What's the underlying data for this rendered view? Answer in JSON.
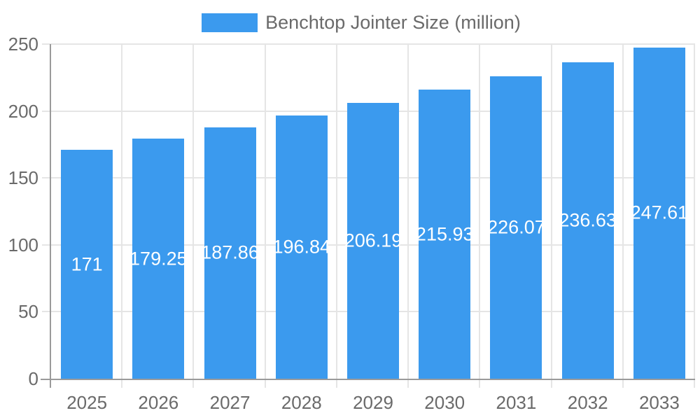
{
  "legend": {
    "label": "Benchtop Jointer Size (million)"
  },
  "chart_data": {
    "type": "bar",
    "title": "Benchtop Jointer Size (million)",
    "series_name": "Benchtop Jointer Size (million)",
    "categories": [
      "2025",
      "2026",
      "2027",
      "2028",
      "2029",
      "2030",
      "2031",
      "2032",
      "2033"
    ],
    "values": [
      171,
      179.25,
      187.86,
      196.84,
      206.19,
      215.93,
      226.07,
      236.63,
      247.61
    ],
    "value_labels": [
      "171",
      "179.25",
      "187.86",
      "196.84",
      "206.19",
      "215.93",
      "226.07",
      "236.63",
      "247.61"
    ],
    "xlabel": "",
    "ylabel": "",
    "ylim": [
      0,
      250
    ],
    "yticks": [
      "0",
      "50",
      "100",
      "150",
      "200",
      "250"
    ],
    "grid": true,
    "legend_position": "top",
    "colors": {
      "bar": "#3B9AEE",
      "bar_value_text": "#FFFFFF",
      "axis_text": "#6A6A6A",
      "grid_line": "#E5E5E5",
      "axis_line": "#9A9A9A",
      "background": "#FFFFFF"
    }
  }
}
